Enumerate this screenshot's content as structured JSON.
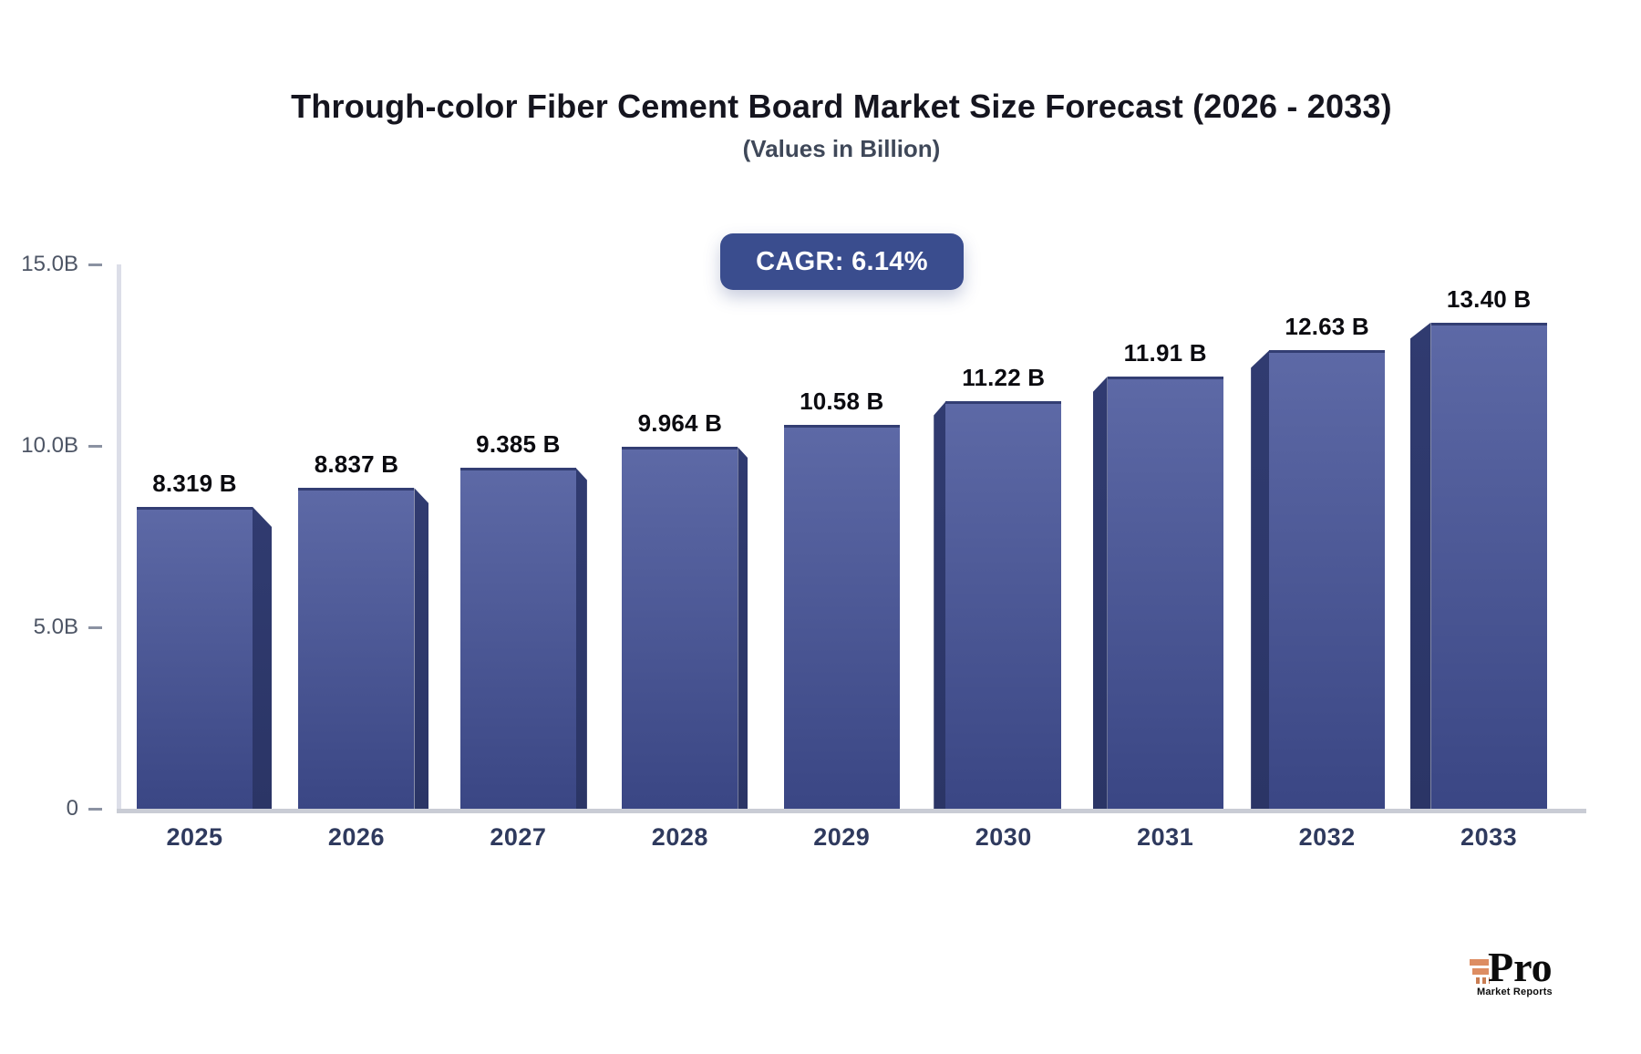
{
  "header": {
    "title": "Through-color Fiber Cement Board Market Size Forecast (2026 - 2033)",
    "subtitle": "(Values in Billion)",
    "cagr_label": "CAGR: 6.14%"
  },
  "chart_data": {
    "type": "bar",
    "title": "Through-color Fiber Cement Board Market Size Forecast (2026 - 2033)",
    "subtitle": "(Values in Billion)",
    "cagr": "6.14%",
    "categories": [
      "2025",
      "2026",
      "2027",
      "2028",
      "2029",
      "2030",
      "2031",
      "2032",
      "2033"
    ],
    "values": [
      8.319,
      8.837,
      9.385,
      9.964,
      10.58,
      11.22,
      11.91,
      12.63,
      13.4
    ],
    "value_labels": [
      "8.319 B",
      "8.837 B",
      "9.385 B",
      "9.964 B",
      "10.58 B",
      "11.22 B",
      "11.91 B",
      "12.63 B",
      "13.40 B"
    ],
    "xlabel": "",
    "ylabel": "",
    "ylim": [
      0,
      15
    ],
    "y_ticks": {
      "values": [
        15,
        10,
        5,
        0
      ],
      "labels": [
        "15.0B",
        "10.0B",
        "5.0B",
        "0"
      ]
    },
    "grid": false,
    "legend": false,
    "bar_style": "3d-extruded-toward-center"
  },
  "colors": {
    "bar_face_top": "#5d69a6",
    "bar_face_bottom": "#3a4684",
    "bar_top_edge": "#333e73",
    "bar_side": "#2b3566",
    "bar_side_light": "#303b70",
    "badge_bg": "#3a4d8e",
    "axis_line": "#dcdee8",
    "baseline": "#c9ccd5",
    "title_text": "#15151f",
    "subtitle_text": "#3f4859",
    "value_label_text": "#0b0b10",
    "x_label_text": "#2f3a5e",
    "y_label_text": "#4d5565",
    "logo_orange": "#dd8d62",
    "logo_orange_dark": "#c97d52"
  },
  "logo": {
    "name": "Pro",
    "tagline": "Market Reports"
  }
}
